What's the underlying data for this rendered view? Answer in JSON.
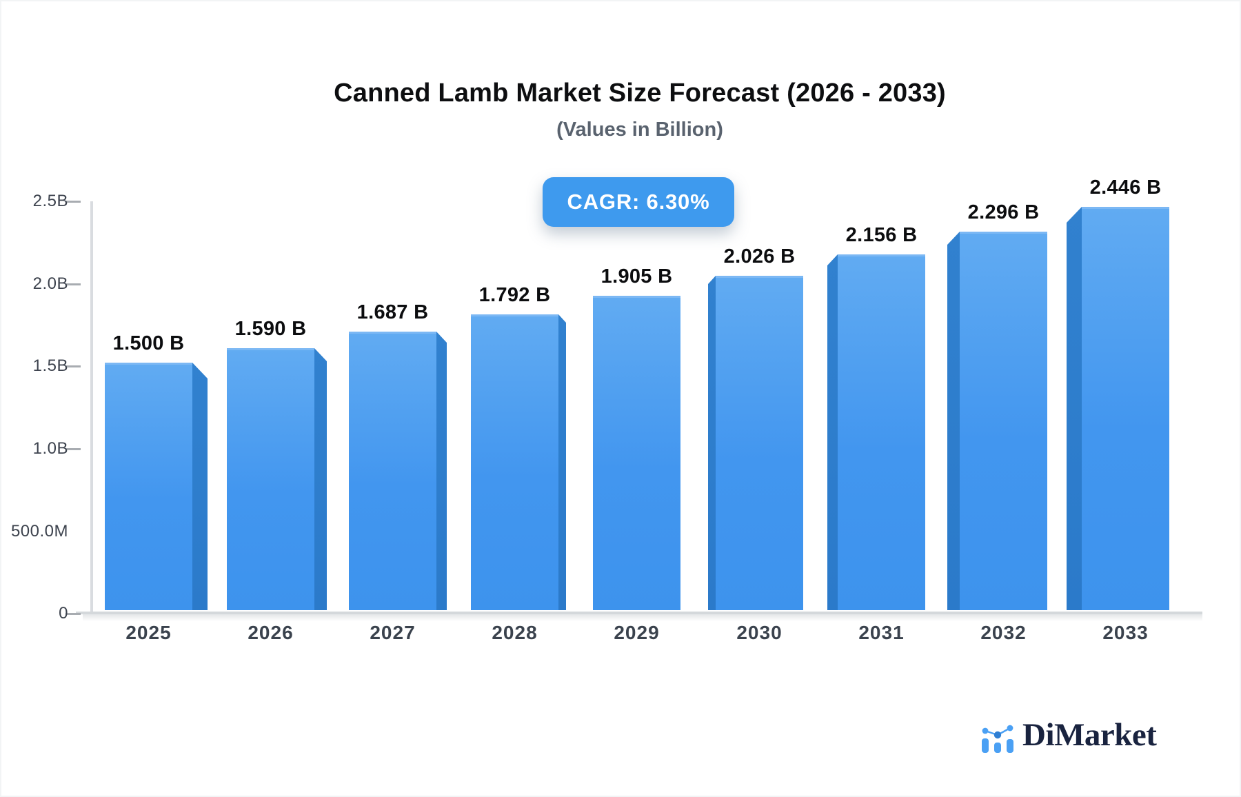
{
  "header": {
    "title": "Canned Lamb Market Size Forecast (2026 - 2033)",
    "subtitle": "(Values in Billion)",
    "cagr_label": "CAGR: 6.30%"
  },
  "chart_data": {
    "type": "bar",
    "title": "Canned Lamb Market Size Forecast (2026 - 2033)",
    "subtitle": "(Values in Billion)",
    "cagr_pct": 6.3,
    "categories": [
      "2025",
      "2026",
      "2027",
      "2028",
      "2029",
      "2030",
      "2031",
      "2032",
      "2033"
    ],
    "values": [
      1.5,
      1.59,
      1.687,
      1.792,
      1.905,
      2.026,
      2.156,
      2.296,
      2.446
    ],
    "bar_labels": [
      "1.500 B",
      "1.590 B",
      "1.687 B",
      "1.792 B",
      "1.905 B",
      "2.026 B",
      "2.156 B",
      "2.296 B",
      "2.446 B"
    ],
    "unit": "B",
    "y_ticks": [
      "2.5B",
      "2.0B",
      "1.5B",
      "1.0B",
      "500.0M",
      "0"
    ],
    "ylim": [
      0,
      2.5
    ],
    "grid": false,
    "legend": false,
    "colors": {
      "bar_front": "#449af0",
      "bar_front_highlight": "#7cb8f4",
      "bar_side": "#2d7ecd",
      "badge_bg": "#3e9aee",
      "axis": "#d6dade",
      "tick": "#a8acb1"
    }
  },
  "branding": {
    "logo_text": "DiMarket",
    "logo_icon": "mini-bar-chart-icon"
  }
}
